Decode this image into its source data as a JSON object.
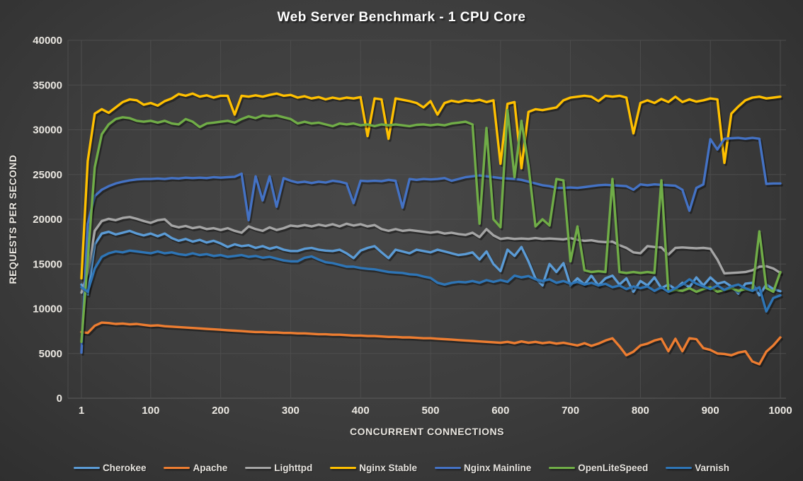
{
  "ui": {
    "gridline_color": "#4d4d4d",
    "axis_line_color": "#5c5c5c",
    "text_color": "#eae7e1",
    "title_color": "#ffffff"
  },
  "chart_data": {
    "type": "line",
    "title": "Web Server Benchmark - 1 CPU Core",
    "xlabel": "CONCURRENT CONNECTIONS",
    "ylabel": "REQUESTS PER SECOND",
    "ylim": [
      0,
      40000
    ],
    "y_tick_step": 5000,
    "x_ticks": [
      1,
      100,
      200,
      300,
      400,
      500,
      600,
      700,
      800,
      900,
      1000
    ],
    "grid": true,
    "legend_position": "bottom",
    "x": [
      1,
      10,
      20,
      30,
      40,
      50,
      60,
      70,
      80,
      90,
      100,
      110,
      120,
      130,
      140,
      150,
      160,
      170,
      180,
      190,
      200,
      210,
      220,
      230,
      240,
      250,
      260,
      270,
      280,
      290,
      300,
      310,
      320,
      330,
      340,
      350,
      360,
      370,
      380,
      390,
      400,
      410,
      420,
      430,
      440,
      450,
      460,
      470,
      480,
      490,
      500,
      510,
      520,
      530,
      540,
      550,
      560,
      570,
      580,
      590,
      600,
      610,
      620,
      630,
      640,
      650,
      660,
      670,
      680,
      690,
      700,
      710,
      720,
      730,
      740,
      750,
      760,
      770,
      780,
      790,
      800,
      810,
      820,
      830,
      840,
      850,
      860,
      870,
      880,
      890,
      900,
      910,
      920,
      930,
      940,
      950,
      960,
      970,
      980,
      990,
      1000
    ],
    "series": [
      {
        "name": "Cherokee",
        "color": "#5B9BD5",
        "values": [
          12700,
          11600,
          17200,
          18400,
          18600,
          18300,
          18500,
          18700,
          18400,
          18200,
          18400,
          18100,
          18400,
          17900,
          17600,
          17800,
          17500,
          17700,
          17400,
          17600,
          17300,
          16900,
          17200,
          17000,
          17100,
          16800,
          17000,
          16700,
          16900,
          16600,
          16450,
          16450,
          16700,
          16800,
          16600,
          16500,
          16450,
          16600,
          16200,
          15650,
          16500,
          16800,
          17000,
          16300,
          15650,
          16600,
          16400,
          16200,
          16600,
          16450,
          16300,
          16600,
          16400,
          16200,
          16000,
          16100,
          16300,
          15500,
          16400,
          15000,
          14200,
          16600,
          15900,
          16900,
          15300,
          13400,
          12600,
          15000,
          14100,
          15100,
          12600,
          13400,
          12700,
          13700,
          12600,
          13400,
          13700,
          12700,
          13400,
          11900,
          13100,
          12600,
          13500,
          12300,
          12700,
          12200,
          12900,
          12400,
          13500,
          12600,
          13500,
          12800,
          13000,
          12500,
          11700,
          12800,
          12900,
          11500,
          12700,
          12200,
          11950
        ]
      },
      {
        "name": "Apache",
        "color": "#ED7D31",
        "values": [
          7400,
          7300,
          8100,
          8450,
          8400,
          8300,
          8350,
          8250,
          8300,
          8200,
          8100,
          8150,
          8050,
          8000,
          7950,
          7900,
          7850,
          7800,
          7750,
          7700,
          7650,
          7600,
          7550,
          7500,
          7450,
          7400,
          7400,
          7350,
          7350,
          7300,
          7300,
          7250,
          7250,
          7200,
          7150,
          7150,
          7100,
          7100,
          7050,
          7000,
          7000,
          6950,
          6950,
          6900,
          6850,
          6850,
          6800,
          6800,
          6750,
          6700,
          6700,
          6650,
          6600,
          6550,
          6500,
          6450,
          6400,
          6350,
          6300,
          6250,
          6200,
          6300,
          6150,
          6350,
          6200,
          6300,
          6150,
          6250,
          6100,
          6200,
          6050,
          5900,
          6150,
          5850,
          6100,
          6450,
          6700,
          5800,
          4800,
          5200,
          5900,
          6100,
          6450,
          6650,
          5250,
          6650,
          5250,
          6700,
          6600,
          5600,
          5400,
          5000,
          4950,
          4800,
          5100,
          5250,
          4100,
          3800,
          5200,
          5900,
          6800
        ]
      },
      {
        "name": "Lighttpd",
        "color": "#A5A5A5",
        "values": [
          11800,
          14000,
          18700,
          19800,
          20050,
          19900,
          20150,
          20250,
          20050,
          19800,
          19600,
          19900,
          20000,
          19300,
          19100,
          19250,
          19000,
          19150,
          18900,
          19000,
          18800,
          19000,
          18700,
          18500,
          19200,
          18900,
          18700,
          19100,
          18800,
          19000,
          19300,
          19200,
          19350,
          19200,
          19400,
          19250,
          19450,
          19200,
          19500,
          19300,
          19450,
          19200,
          19350,
          18900,
          18700,
          18900,
          18700,
          18800,
          18700,
          18600,
          18500,
          18600,
          18400,
          18500,
          18350,
          18250,
          18500,
          18000,
          18900,
          18200,
          17800,
          17900,
          17800,
          17850,
          17800,
          17900,
          17800,
          17850,
          17800,
          17750,
          17900,
          17700,
          17600,
          17650,
          17500,
          17450,
          17500,
          17100,
          16800,
          16300,
          16200,
          17000,
          16900,
          16850,
          16050,
          16800,
          16850,
          16800,
          16750,
          16800,
          16700,
          15500,
          13950,
          14000,
          14050,
          14100,
          14300,
          14700,
          14750,
          14500,
          14000
        ]
      },
      {
        "name": "Nginx Stable",
        "color": "#FFC000",
        "values": [
          13400,
          26500,
          31800,
          32300,
          31900,
          32500,
          33100,
          33400,
          33300,
          32800,
          33000,
          32700,
          33200,
          33500,
          34000,
          33800,
          34050,
          33700,
          33850,
          33600,
          33800,
          33800,
          31700,
          33800,
          33700,
          33850,
          33700,
          33900,
          34050,
          33800,
          33900,
          33600,
          33750,
          33500,
          33650,
          33400,
          33600,
          33450,
          33600,
          33500,
          33650,
          29300,
          33500,
          33400,
          29000,
          33500,
          33350,
          33200,
          33000,
          32500,
          33200,
          31700,
          33000,
          33250,
          33100,
          33300,
          33200,
          33350,
          33100,
          33300,
          26200,
          32900,
          33100,
          25700,
          32000,
          32300,
          32200,
          32350,
          32500,
          33300,
          33600,
          33700,
          33800,
          33700,
          33200,
          33800,
          33700,
          33800,
          33600,
          29600,
          33000,
          33300,
          33000,
          33450,
          33100,
          33700,
          33100,
          33400,
          33150,
          33300,
          33500,
          33400,
          26300,
          31800,
          32600,
          33300,
          33600,
          33700,
          33500,
          33600,
          33700
        ]
      },
      {
        "name": "Nginx Mainline",
        "color": "#4472C4",
        "values": [
          5100,
          19500,
          22600,
          23300,
          23700,
          24000,
          24200,
          24350,
          24450,
          24500,
          24500,
          24550,
          24500,
          24600,
          24550,
          24650,
          24600,
          24650,
          24600,
          24700,
          24650,
          24700,
          24750,
          25100,
          19900,
          24800,
          22100,
          24800,
          21400,
          24600,
          24300,
          24100,
          24200,
          24050,
          24200,
          24100,
          24300,
          24200,
          24000,
          21800,
          24300,
          24250,
          24300,
          24250,
          24400,
          24300,
          21300,
          24500,
          24400,
          24500,
          24450,
          24500,
          24600,
          24300,
          24500,
          24700,
          24800,
          24900,
          24800,
          24700,
          24600,
          24550,
          24500,
          24400,
          24200,
          24000,
          23800,
          23700,
          23500,
          23500,
          23550,
          23500,
          23600,
          23700,
          23800,
          23850,
          23800,
          23750,
          23700,
          23300,
          23900,
          23800,
          23900,
          23850,
          23800,
          23750,
          23300,
          20950,
          23500,
          23900,
          28950,
          27800,
          29000,
          29050,
          29100,
          29000,
          29100,
          29000,
          23950,
          24000,
          24000
        ]
      },
      {
        "name": "OpenLiteSpeed",
        "color": "#70AD47",
        "values": [
          6300,
          15500,
          25800,
          29500,
          30600,
          31200,
          31400,
          31300,
          31000,
          30900,
          31000,
          30800,
          31000,
          30700,
          30600,
          31200,
          30900,
          30300,
          30700,
          30800,
          30900,
          31000,
          30800,
          31200,
          31500,
          31300,
          31600,
          31500,
          31600,
          31400,
          31200,
          30700,
          30900,
          30700,
          30800,
          30600,
          30400,
          30700,
          30600,
          30700,
          30500,
          30600,
          30400,
          30600,
          30500,
          30600,
          30500,
          30400,
          30550,
          30600,
          30500,
          30600,
          30500,
          30700,
          30800,
          30900,
          30600,
          19500,
          30200,
          20000,
          19100,
          32200,
          24700,
          31000,
          26000,
          19200,
          20000,
          19300,
          24500,
          24350,
          15300,
          19200,
          14300,
          14100,
          14200,
          14100,
          24500,
          14100,
          14000,
          14100,
          14000,
          14100,
          14000,
          24350,
          11900,
          12100,
          12000,
          12300,
          11900,
          12200,
          12400,
          11900,
          12100,
          12300,
          12000,
          12200,
          12000,
          18650,
          12300,
          11900,
          14100
        ]
      },
      {
        "name": "Varnish",
        "color": "#2E75B6",
        "values": [
          12400,
          11900,
          14500,
          15800,
          16200,
          16400,
          16300,
          16500,
          16400,
          16300,
          16200,
          16400,
          16200,
          16300,
          16100,
          16000,
          16200,
          16000,
          16100,
          15900,
          16000,
          15800,
          15900,
          16000,
          15800,
          15900,
          15700,
          15800,
          15600,
          15400,
          15300,
          15300,
          15700,
          15850,
          15500,
          15200,
          15100,
          14900,
          14700,
          14700,
          14550,
          14460,
          14400,
          14250,
          14100,
          14050,
          14000,
          13850,
          13800,
          13600,
          13450,
          12900,
          12700,
          12900,
          13000,
          12950,
          13100,
          12900,
          13200,
          13000,
          13200,
          13000,
          13700,
          13500,
          13650,
          13300,
          13100,
          13300,
          12900,
          13100,
          12800,
          13000,
          12700,
          12900,
          12600,
          12800,
          12400,
          12600,
          12200,
          12500,
          12300,
          12500,
          12000,
          12400,
          11900,
          12300,
          12700,
          13300,
          12800,
          12500,
          12200,
          12600,
          12100,
          12500,
          12700,
          12300,
          12000,
          12400,
          9700,
          11200,
          11500
        ]
      }
    ]
  }
}
